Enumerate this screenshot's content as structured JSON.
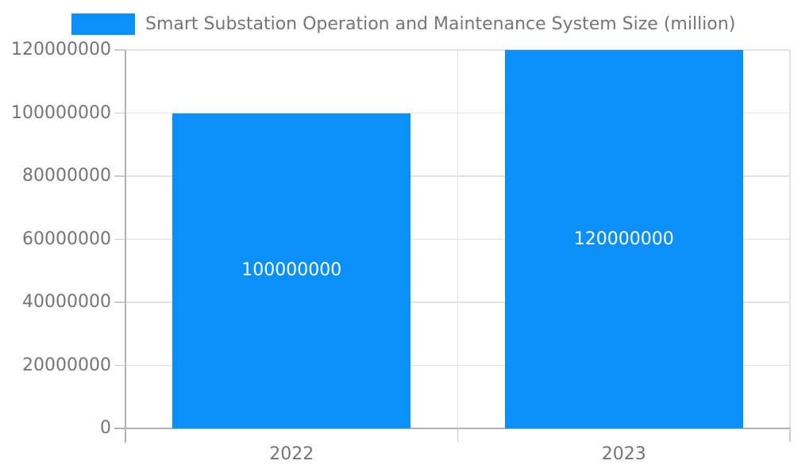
{
  "legend": {
    "label": "Smart Substation Operation and Maintenance System Size (million)"
  },
  "colors": {
    "bar": "#0a90f8",
    "grid": "#e2e2e2",
    "axis": "#b3b3b3",
    "tick": "#cccccc",
    "text": "#757575",
    "bar_label": "#ffffff",
    "background": "#ffffff"
  },
  "chart_data": {
    "type": "bar",
    "title": "Smart Substation Operation and Maintenance System Size (million)",
    "categories": [
      "2022",
      "2023"
    ],
    "values": [
      100000000,
      120000000
    ],
    "value_labels": [
      "100000000",
      "120000000"
    ],
    "xlabel": "",
    "ylabel": "",
    "ylim": [
      0,
      120000000
    ],
    "yticks": [
      0,
      20000000,
      40000000,
      60000000,
      80000000,
      100000000,
      120000000
    ],
    "ytick_labels": [
      "0",
      "20000000",
      "40000000",
      "60000000",
      "80000000",
      "100000000",
      "120000000"
    ],
    "grid": true,
    "legend_position": "top"
  }
}
